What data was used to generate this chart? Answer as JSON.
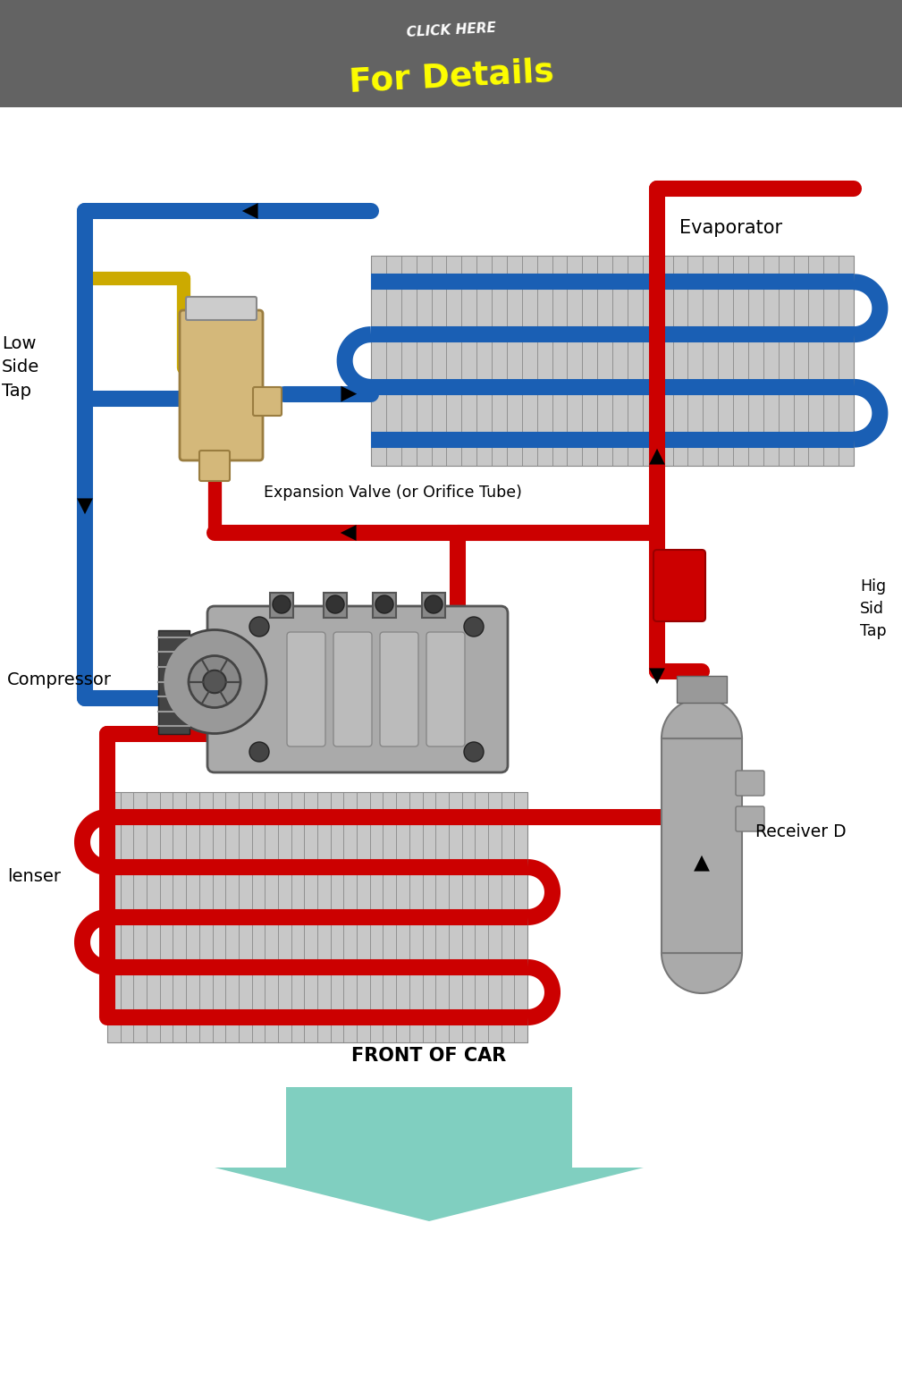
{
  "title_top": "CLICK HERE",
  "title_main": "For Details",
  "title_bg_color": "#636363",
  "title_top_color": "#ffffff",
  "title_main_color": "#ffff00",
  "bg_color": "#ffffff",
  "blue_line_color": "#1a5fb4",
  "red_line_color": "#cc0000",
  "yellow_line_color": "#ccaa00",
  "gray_coil_color": "#b0b0b0",
  "arrow_color": "#111111",
  "arrow_front": "#80cfc0",
  "labels": {
    "evaporator": "Evaporator",
    "expansion": "Expansion Valve (or Orifice Tube)",
    "low_side": "Low\nSide\nTap",
    "compressor": "Compressor",
    "condenser": "lenser",
    "high_side": "Hig\nSid\nTap",
    "receiver": "Receiver D",
    "front_car": "FRONT OF CAR"
  },
  "figsize": [
    10.09,
    15.66
  ],
  "dpi": 100
}
